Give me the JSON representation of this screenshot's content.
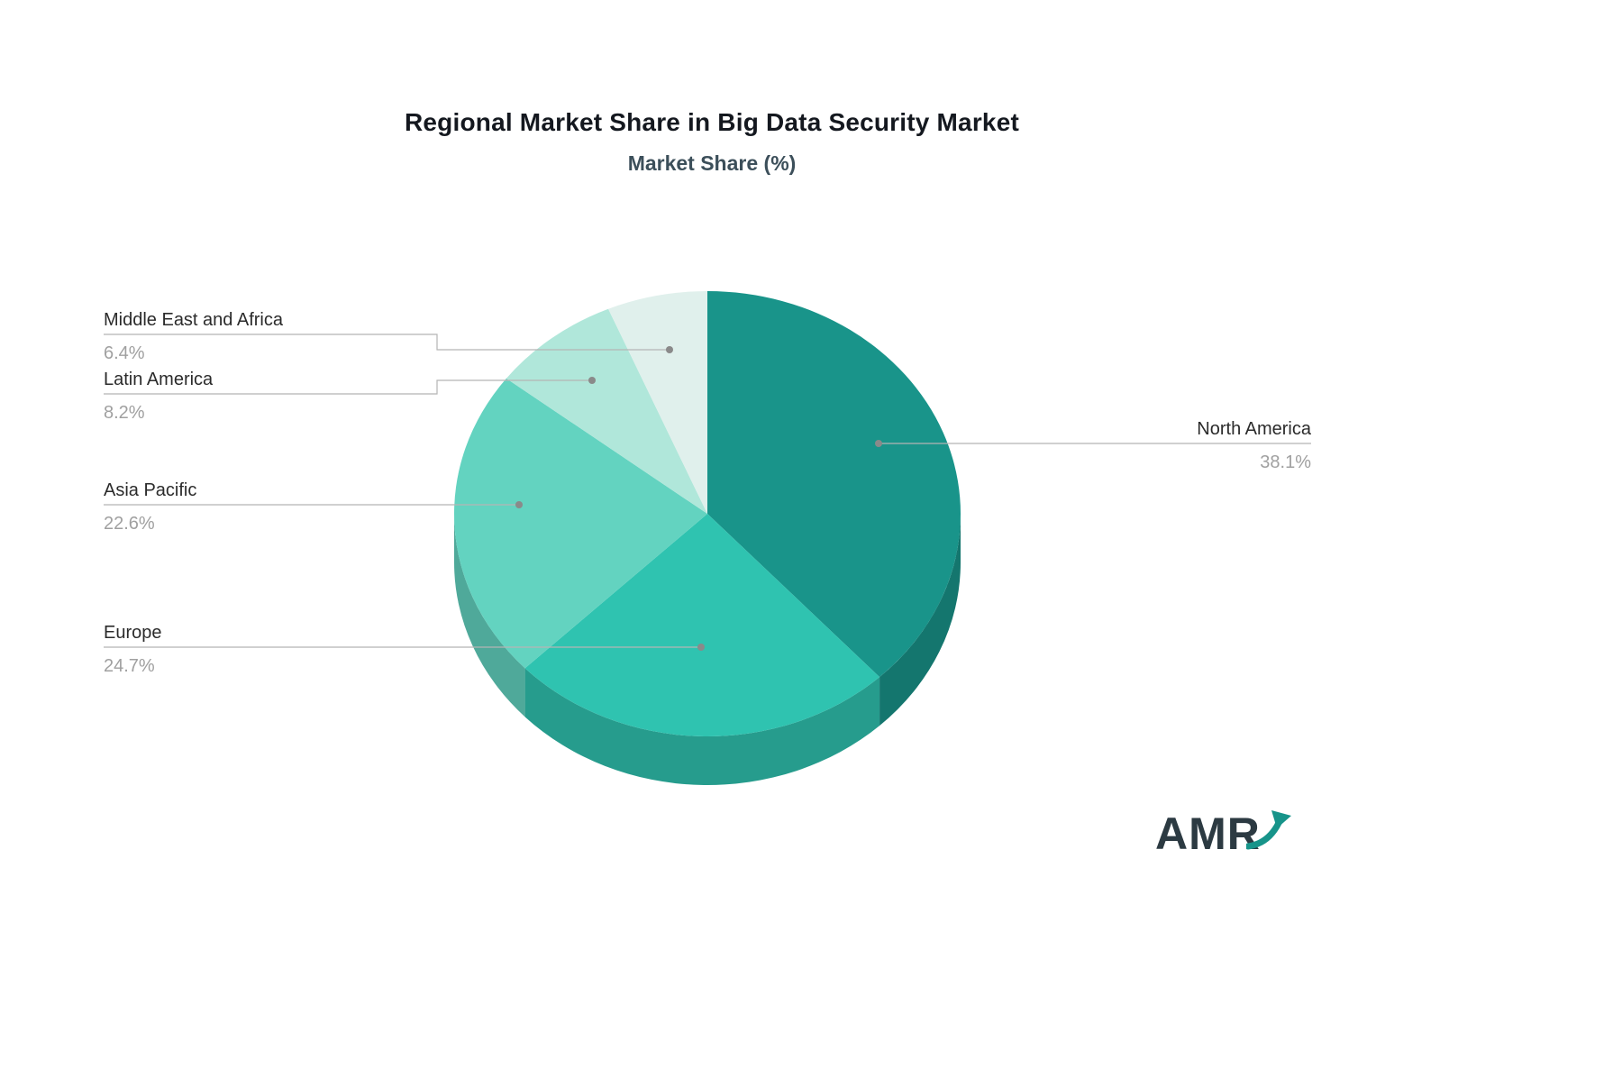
{
  "title": "Regional Market Share in Big Data Security Market",
  "subtitle": "Market Share (%)",
  "logo": {
    "text": "AMR"
  },
  "chart_data": {
    "type": "pie",
    "title": "Regional Market Share in Big Data Security Market",
    "subtitle": "Market Share (%)",
    "labels": [
      "North America",
      "Europe",
      "Asia Pacific",
      "Latin America",
      "Middle East and Africa"
    ],
    "values": [
      38.1,
      24.7,
      22.6,
      8.2,
      6.4
    ],
    "unit": "%",
    "displayed_values": [
      "38.1%",
      "24.7%",
      "22.6%",
      "8.2%",
      "6.4%"
    ],
    "colors": [
      "#19948a",
      "#2fc3b0",
      "#63d3c0",
      "#b0e7da",
      "#e0f0ec"
    ],
    "style": "3d-pie",
    "start_angle_deg": 0,
    "direction": "clockwise",
    "legend": "none",
    "label_line_color": "#b5b5b5",
    "label_name_color": "#2b2b2b",
    "label_value_color": "#a0a0a0"
  }
}
